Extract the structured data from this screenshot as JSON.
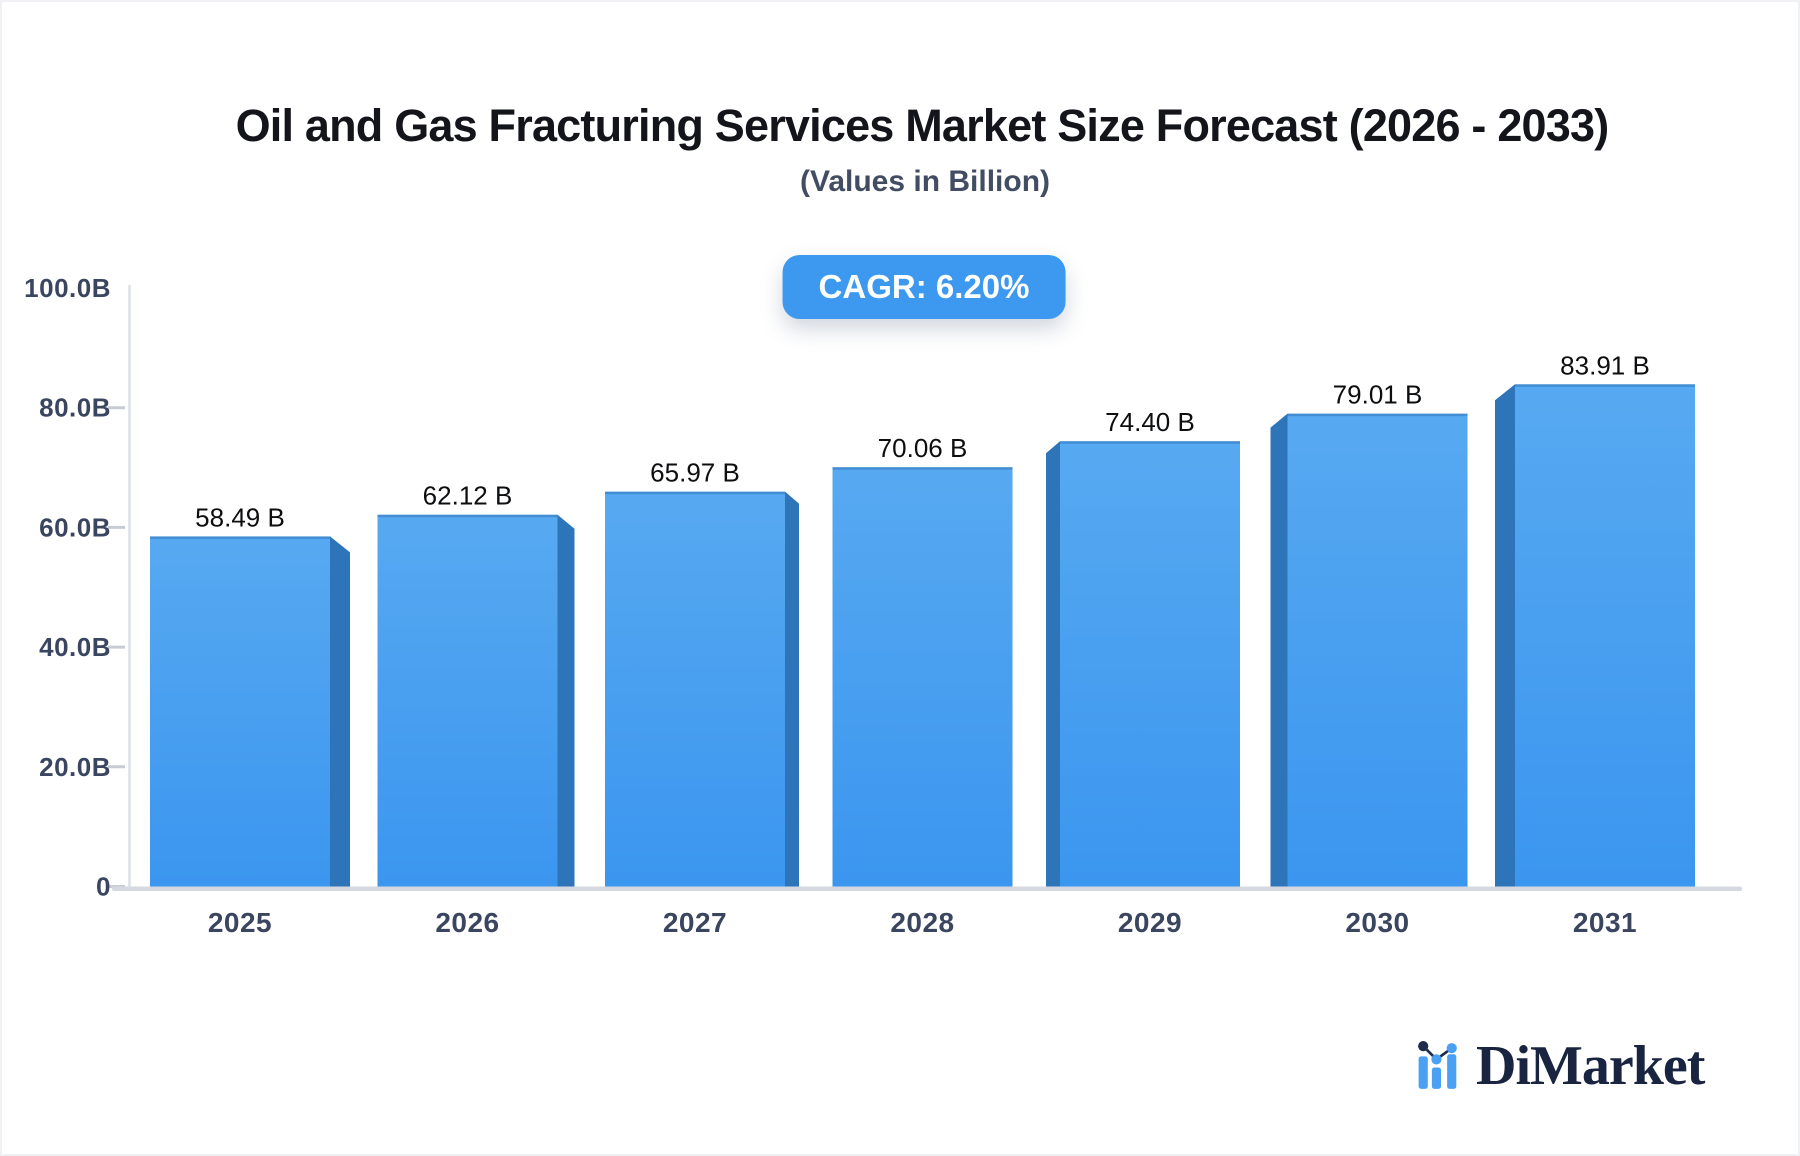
{
  "header": {
    "title": "Oil and Gas Fracturing Services Market Size Forecast (2026 - 2033)",
    "subtitle": "(Values in Billion)",
    "cagr_label": "CAGR: 6.20%"
  },
  "chart_data": {
    "type": "bar",
    "title": "Oil and Gas Fracturing Services Market Size Forecast (2026 - 2033)",
    "subtitle": "(Values in Billion)",
    "annotation": "CAGR: 6.20%",
    "categories": [
      "2025",
      "2026",
      "2027",
      "2028",
      "2029",
      "2030",
      "2031"
    ],
    "values": [
      58.49,
      62.12,
      65.97,
      70.06,
      74.4,
      79.01,
      83.91
    ],
    "value_labels": [
      "58.49 B",
      "62.12 B",
      "65.97 B",
      "70.06 B",
      "74.40 B",
      "79.01 B",
      "83.91 B"
    ],
    "xlabel": "",
    "ylabel": "",
    "ylim": [
      0,
      100
    ],
    "yticks": [
      {
        "value": 100,
        "label": "100.0B"
      },
      {
        "value": 80,
        "label": "80.0B"
      },
      {
        "value": 60,
        "label": "60.0B"
      },
      {
        "value": 40,
        "label": "40.0B"
      },
      {
        "value": 20,
        "label": "20.0B"
      },
      {
        "value": 0,
        "label": "0"
      }
    ],
    "grid": false,
    "legend": false,
    "bar_style": "pseudo-3d, side faces angled toward center vanishing point"
  },
  "branding": {
    "logo_text": "DiMarket",
    "logo_icon": "bar-chart-with-trendline-icon"
  },
  "colors": {
    "bar_front_top": "#57a9f1",
    "bar_front_bottom": "#3b96ef",
    "bar_top_edge": "rgba(21,83,148,0.32)",
    "bar_side": "#2e74b9",
    "axis_line": "#dce0e6",
    "baseline": "#d5d9df",
    "tick": "#c7ccd4",
    "axis_label": "#3a4660",
    "value_label": "#0d0e10",
    "badge_bg": "#3d99f0",
    "badge_text": "#ffffff",
    "logo_blue": "#4aa0f2",
    "logo_navy": "#1e2c4c",
    "logo_text_color": "#182440"
  }
}
